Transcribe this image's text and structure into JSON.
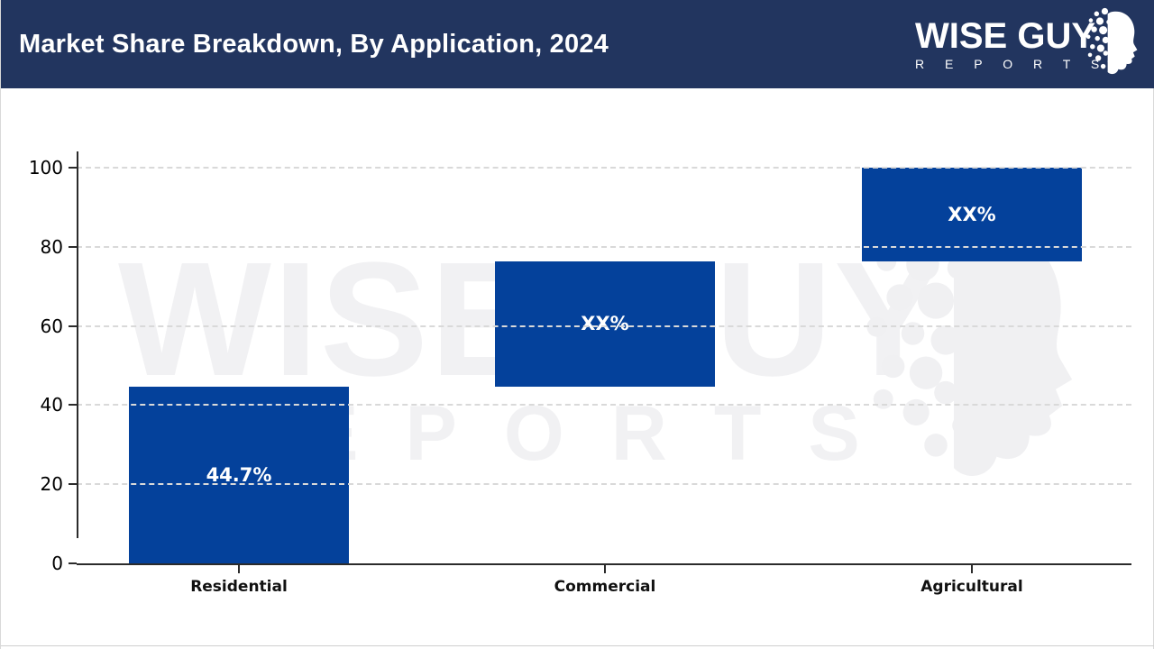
{
  "header": {
    "title": "Market Share Breakdown, By Application, 2024",
    "logo": {
      "line1": "WISE GUY",
      "line2": "R E P O R T S"
    }
  },
  "watermark": {
    "line1": "WISE GUY",
    "line2": "REPORTS"
  },
  "colors": {
    "header_bg": "#22355F",
    "bar": "#04419B",
    "grid": "#d9d9d9",
    "axis": "#2b2b2b",
    "bar_label_text": "#ffffff",
    "watermark": "#f1f1f3"
  },
  "chart_data": {
    "type": "bar",
    "subtype": "floating-segment-waterfall",
    "title": "Market Share Breakdown, By Application, 2024",
    "categories": [
      "Residential",
      "Commercial",
      "Agricultural"
    ],
    "segments": [
      {
        "category": "Residential",
        "from": 0,
        "to": 44.7,
        "label": "44.7%"
      },
      {
        "category": "Commercial",
        "from": 44.7,
        "to": 76.4,
        "label": "XX%"
      },
      {
        "category": "Agricultural",
        "from": 76.4,
        "to": 100,
        "label": "XX%"
      }
    ],
    "xlabel": "",
    "ylabel": "",
    "ylim": [
      0,
      100
    ],
    "yticks": [
      0,
      20,
      40,
      60,
      80,
      100
    ],
    "grid": "horizontal-dashed",
    "legend": "none",
    "bar_color": "#04419B"
  }
}
